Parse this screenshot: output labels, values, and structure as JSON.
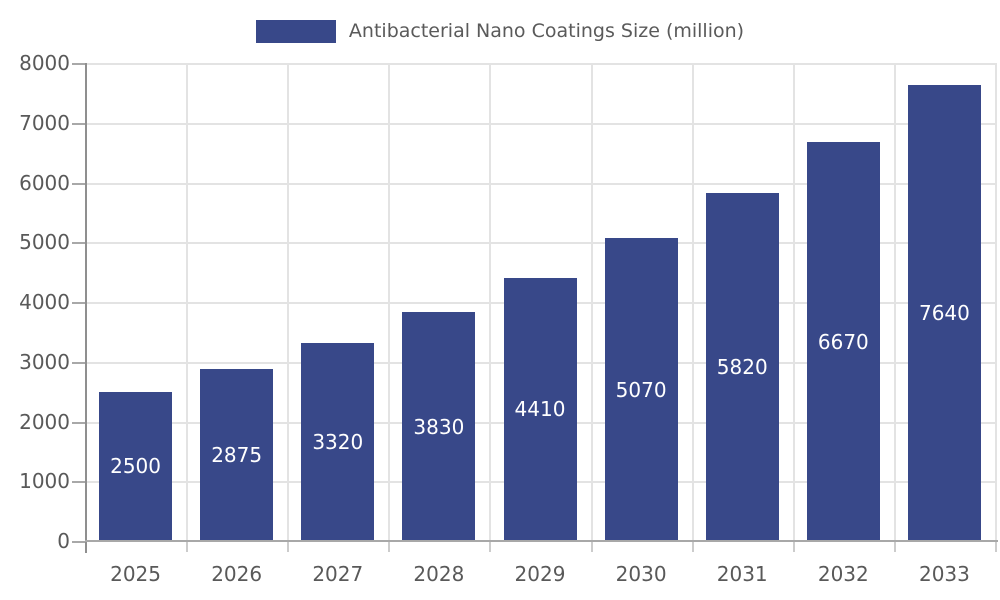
{
  "chart_data": {
    "type": "bar",
    "title": "",
    "legend_label": "Antibacterial Nano Coatings Size (million)",
    "legend_position": "top-center",
    "categories": [
      "2025",
      "2026",
      "2027",
      "2028",
      "2029",
      "2030",
      "2031",
      "2032",
      "2033"
    ],
    "series": [
      {
        "name": "Antibacterial Nano Coatings Size (million)",
        "values": [
          2500,
          2875,
          3320,
          3830,
          4410,
          5070,
          5820,
          6670,
          7640
        ]
      }
    ],
    "value_labels": {
      "position": "inside-center",
      "color": "#ffffff"
    },
    "xlabel": "",
    "ylabel": "",
    "ylim": [
      0,
      8000
    ],
    "ytick_step": 1000,
    "yticks": [
      0,
      1000,
      2000,
      3000,
      4000,
      5000,
      6000,
      7000,
      8000
    ],
    "grid": true,
    "colors": {
      "bar": "#384889",
      "gridline": "#e3e3e3",
      "axis_line": "#9a9a9a",
      "tick_text": "#595959",
      "legend_text": "#5a5a5a",
      "background": "#ffffff"
    }
  }
}
